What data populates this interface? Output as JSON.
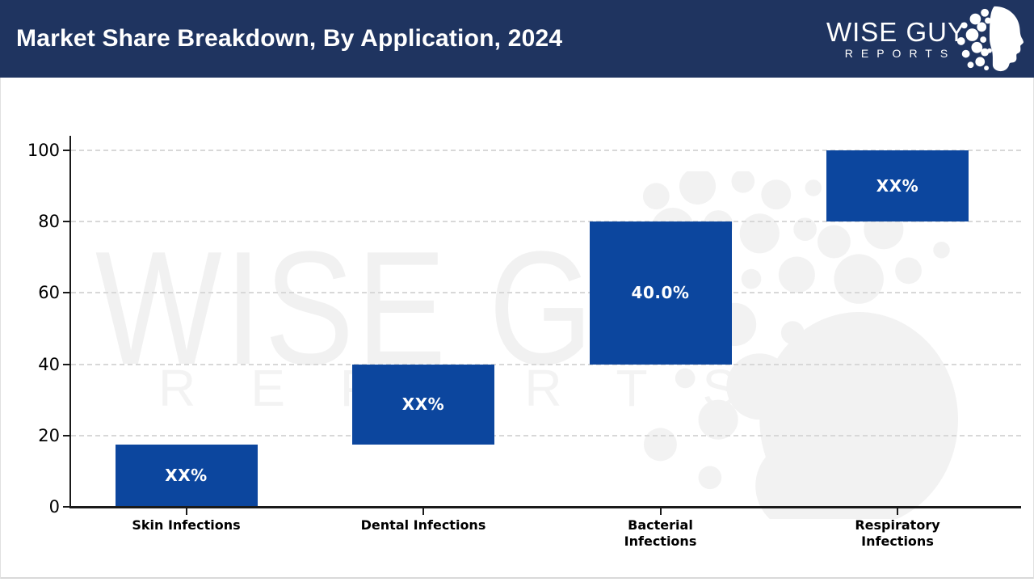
{
  "header": {
    "title": "Market Share Breakdown, By Application, 2024",
    "bg_color": "#1F3460",
    "logo": {
      "wordmark": "WISE GUY",
      "subtext": "REPORTS",
      "icon": "dotted-head-profile-icon"
    }
  },
  "watermark": {
    "wordmark": "WISE GU",
    "subtext": "REPORTS",
    "icon": "dotted-head-profile-icon"
  },
  "chart_data": {
    "type": "bar",
    "variant": "floating-segment-waterfall",
    "title": "Market Share Breakdown, By Application, 2024",
    "categories": [
      "Skin Infections",
      "Dental Infections",
      "Bacterial Infections",
      "Respiratory Infections"
    ],
    "categories_display": [
      [
        "Skin Infections"
      ],
      [
        "Dental Infections"
      ],
      [
        "Bacterial",
        "Infections"
      ],
      [
        "Respiratory",
        "Infections"
      ]
    ],
    "bars": [
      {
        "category": "Skin Infections",
        "start": 0,
        "end": 17.5,
        "label": "XX%"
      },
      {
        "category": "Dental Infections",
        "start": 17.5,
        "end": 40,
        "label": "XX%"
      },
      {
        "category": "Bacterial Infections",
        "start": 40,
        "end": 80,
        "label": "40.0%"
      },
      {
        "category": "Respiratory Infections",
        "start": 80,
        "end": 100,
        "label": "XX%"
      }
    ],
    "yticks": [
      0,
      20,
      40,
      60,
      80,
      100
    ],
    "ylim": [
      0,
      105
    ],
    "xlabel": "",
    "ylabel": "",
    "grid": "horizontal-dashed",
    "legend": "none",
    "bar_color": "#0C469E",
    "bar_label_color": "#FFFFFF",
    "axis_color": "#1a1a1a",
    "gridline_color": "#d8d8d8"
  }
}
